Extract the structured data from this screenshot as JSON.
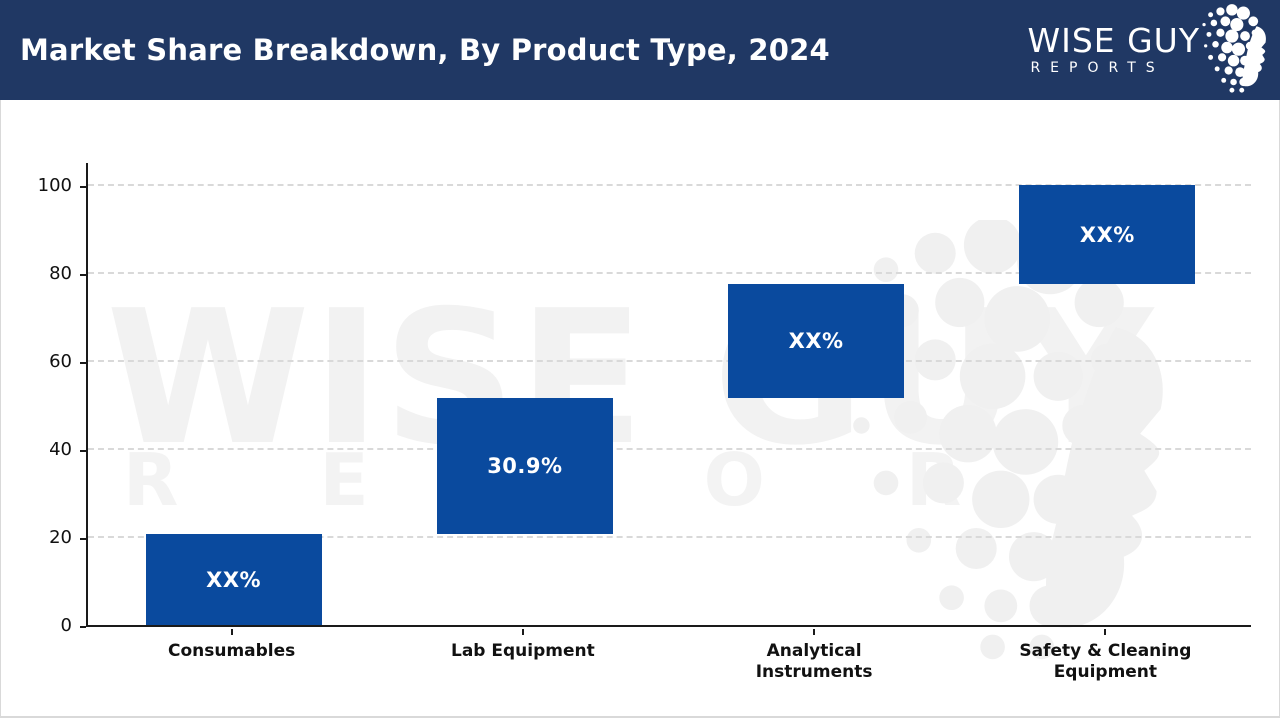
{
  "header": {
    "title": "Market Share Breakdown, By Product Type, 2024",
    "logo": {
      "line1": "WISE GUY",
      "line2": "REPORTS"
    }
  },
  "watermark": {
    "line1": "WISE GUY",
    "line2": "R E P O R T S"
  },
  "colors": {
    "header_bg": "#203864",
    "bar": "#0a4a9e",
    "grid": "#d9d9d9",
    "axis": "#1a1a1a",
    "value_label": "#ffffff",
    "watermark_text": "#f2f2f2",
    "watermark_head": "#f0f0f0",
    "panel_border": "#d9d9d9"
  },
  "chart_data": {
    "type": "bar",
    "subtype": "waterfall",
    "title": "Market Share Breakdown, By Product Type, 2024",
    "categories": [
      "Consumables",
      "Lab Equipment",
      "Analytical\nInstruments",
      "Safety & Cleaning\nEquipment"
    ],
    "bar_starts": [
      0,
      20.6,
      51.5,
      77.4
    ],
    "bar_ends": [
      20.6,
      51.5,
      77.4,
      100
    ],
    "segment_heights": [
      20.6,
      30.9,
      25.9,
      22.6
    ],
    "value_labels": [
      "XX%",
      "30.9%",
      "XX%",
      "XX%"
    ],
    "xlabel": "",
    "ylabel": "",
    "ylim": [
      0,
      100
    ],
    "yticks": [
      0,
      20,
      40,
      60,
      80,
      100
    ],
    "grid": "dashed-horizontal",
    "legend": "none"
  }
}
